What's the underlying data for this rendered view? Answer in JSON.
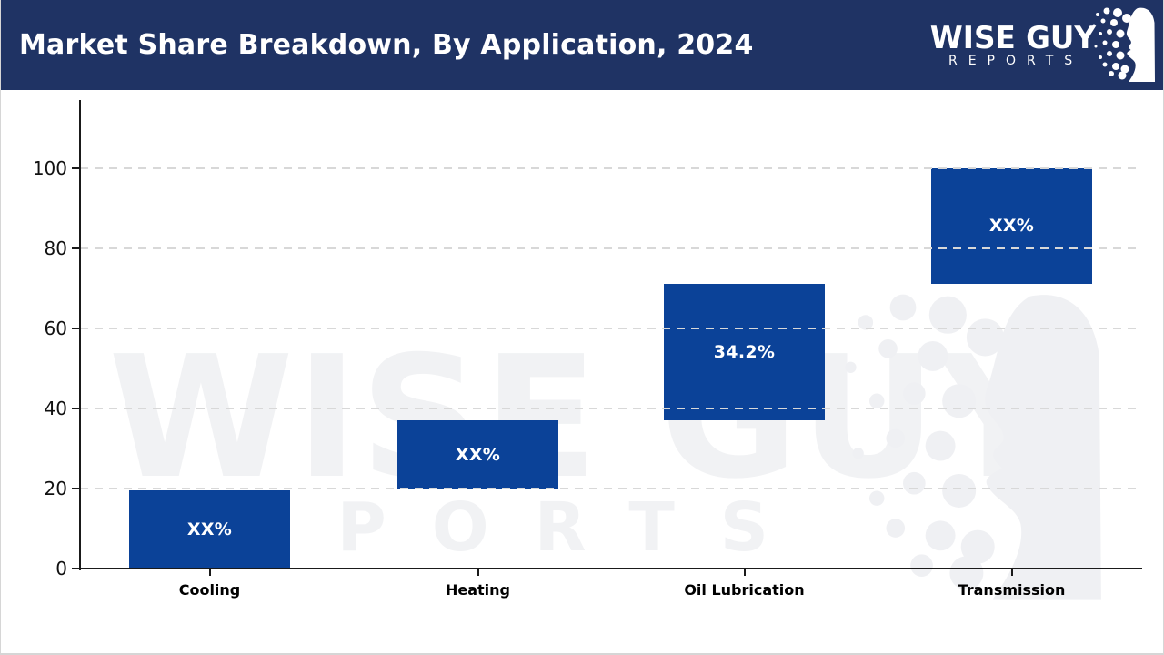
{
  "header": {
    "title": "Market Share Breakdown, By Application, 2024",
    "bg_color": "#1f3364",
    "text_color": "#ffffff",
    "logo": {
      "wordmark": "WISE GUY",
      "subtitle": "REPORTS"
    }
  },
  "watermark": {
    "wordmark": "WISE GUY",
    "subtitle": "REPORTS"
  },
  "chart_data": {
    "type": "bar",
    "variant": "waterfall",
    "title": "Market Share Breakdown, By Application, 2024",
    "categories": [
      "Cooling",
      "Heating",
      "Oil Lubrication",
      "Transmission"
    ],
    "segments": [
      {
        "category": "Cooling",
        "start": 0,
        "end": 19.5,
        "label": "XX%"
      },
      {
        "category": "Heating",
        "start": 20,
        "end": 37,
        "label": "XX%"
      },
      {
        "category": "Oil Lubrication",
        "start": 37,
        "end": 71.2,
        "label": "34.2%"
      },
      {
        "category": "Transmission",
        "start": 71.2,
        "end": 100,
        "label": "XX%"
      }
    ],
    "y_ticks": [
      0,
      20,
      40,
      60,
      80,
      100
    ],
    "ylim": [
      0,
      117
    ],
    "xlabel": "",
    "ylabel": "",
    "grid": "horizontal-dashed",
    "legend": "none",
    "bar_color": "#0b4298",
    "gridline_color": "#d8d8d8",
    "axis_color": "#1a1a1a"
  }
}
